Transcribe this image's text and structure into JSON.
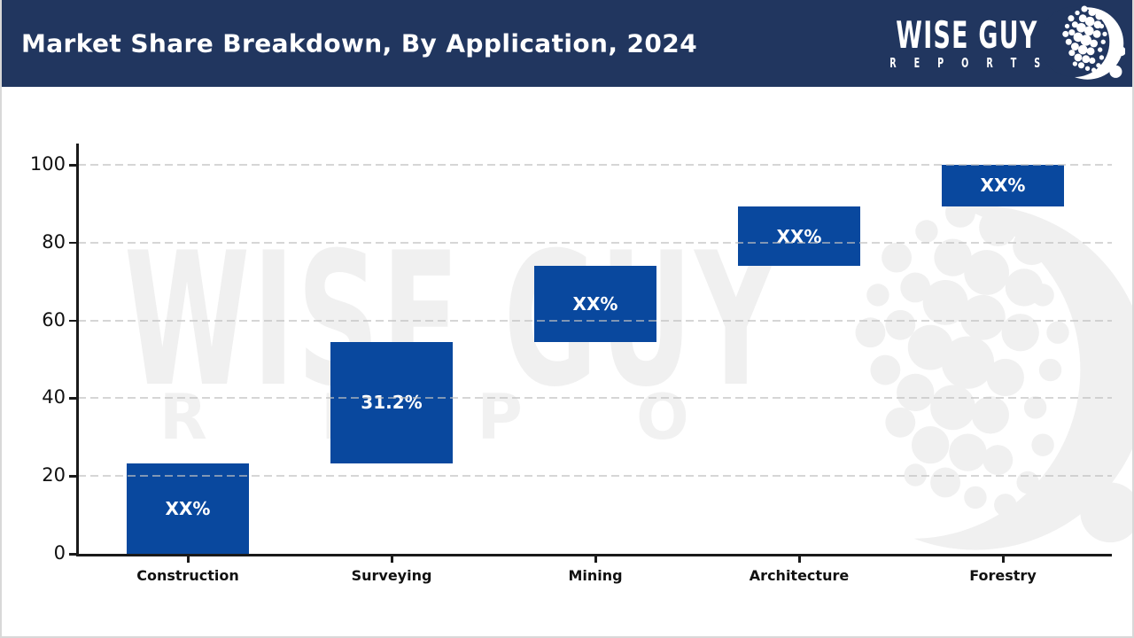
{
  "header": {
    "title": "Market Share Breakdown, By Application, 2024",
    "bg_color": "#21365f",
    "logo": {
      "line1": "WISE GUY",
      "line2": "R E P O R T S"
    }
  },
  "watermark": {
    "line1": "WISE GUY",
    "line2": "R E P O R T S"
  },
  "chart_data": {
    "type": "bar",
    "subtype": "waterfall",
    "title": "Market Share Breakdown, By Application, 2024",
    "categories": [
      "Construction",
      "Surveying",
      "Mining",
      "Architecture",
      "Forestry"
    ],
    "series": [
      {
        "name": "Market Share",
        "segments": [
          {
            "category": "Construction",
            "start": 0,
            "end": 23.3,
            "value": 23.3,
            "label": "XX%"
          },
          {
            "category": "Surveying",
            "start": 23.3,
            "end": 54.5,
            "value": 31.2,
            "label": "31.2%"
          },
          {
            "category": "Mining",
            "start": 54.5,
            "end": 74.0,
            "value": 19.5,
            "label": "XX%"
          },
          {
            "category": "Architecture",
            "start": 74.0,
            "end": 89.3,
            "value": 15.3,
            "label": "XX%"
          },
          {
            "category": "Forestry",
            "start": 89.3,
            "end": 100,
            "value": 10.7,
            "label": "XX%"
          }
        ]
      }
    ],
    "xlabel": "",
    "ylabel": "",
    "ylim": [
      0,
      100
    ],
    "yticks": [
      0,
      20,
      40,
      60,
      80,
      100
    ],
    "grid": "dashed-horizontal",
    "legend": "none",
    "bar_color": "#09489e",
    "label_color": "#ffffff",
    "axis_color": "#1a1a1a"
  }
}
